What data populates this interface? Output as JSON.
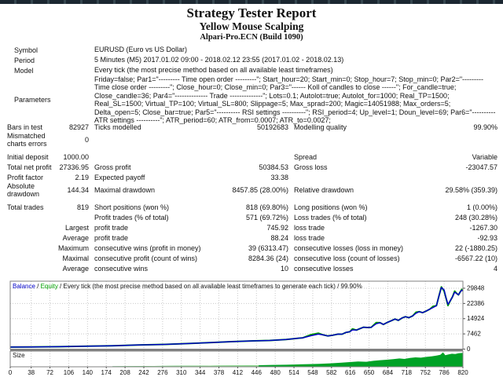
{
  "header": {
    "title": "Strategy Tester Report",
    "subtitle": "Yellow Mouse Scalping",
    "server": "Alpari-Pro.ECN (Build 1090)"
  },
  "info": {
    "symbol_label": "Symbol",
    "symbol": "EURUSD (Euro vs US Dollar)",
    "period_label": "Period",
    "period": "5 Minutes (M5) 2017.01.02 09:00 - 2018.02.12 23:55 (2017.01.02 - 2018.02.13)",
    "model_label": "Model",
    "model": "Every tick (the most precise method based on all available least timeframes)",
    "parameters_label": "Parameters",
    "parameters": "Friday=false; Par1=\"--------- Time open order ---------\"; Start_hour=20; Start_min=0; Stop_hour=7; Stop_min=0; Par2=\"--------- Time close order ---------\"; Close_hour=0; Close_min=0; Par3=\"------ Koll of candles to close ------\"; For_candle=true; Close_candle=36; Par4=\"-------------- Trade --------------\"; Lots=0.1; Autolot=true; Autolot_for=1000; Real_TP=1500; Real_SL=1500; Virtual_TP=100; Virtual_SL=800; Slippage=5; Max_sprad=200; Magic=14051988; Max_orders=5; Delta_open=5; Close_bar=true; Par5=\"---------- RSI settings ----------\"; RSI_period=4; Up_level=1; Doun_level=69; Par6=\"---------- ATR settings ----------\"; ATR_period=60; ATR_from=0.0007; ATR_to=0.0027;"
  },
  "stats_rows": [
    {
      "gap": false,
      "cells": [
        "Bars in test",
        "82927",
        "Ticks modelled",
        "50192683",
        "Modelling quality",
        "99.90%"
      ]
    },
    {
      "gap": false,
      "cells": [
        "Mismatched charts errors",
        "0",
        "",
        "",
        "",
        ""
      ]
    },
    {
      "gap": true,
      "cells": [
        "Initial deposit",
        "1000.00",
        "",
        "",
        "Spread",
        "Variable"
      ]
    },
    {
      "gap": false,
      "cells": [
        "Total net profit",
        "27336.95",
        "Gross profit",
        "50384.53",
        "Gross loss",
        "-23047.57"
      ]
    },
    {
      "gap": false,
      "cells": [
        "Profit factor",
        "2.19",
        "Expected payoff",
        "33.38",
        "",
        ""
      ]
    },
    {
      "gap": false,
      "cells": [
        "Absolute drawdown",
        "144.34",
        "Maximal drawdown",
        "8457.85 (28.00%)",
        "Relative drawdown",
        "29.58% (359.39)"
      ]
    },
    {
      "gap": true,
      "cells": [
        "Total trades",
        "819",
        "Short positions (won %)",
        "818 (69.80%)",
        "Long positions (won %)",
        "1 (0.00%)"
      ]
    },
    {
      "gap": false,
      "cells": [
        "",
        "",
        "Profit trades (% of total)",
        "571 (69.72%)",
        "Loss trades (% of total)",
        "248 (30.28%)"
      ]
    },
    {
      "gap": false,
      "cells": [
        "",
        "Largest",
        "profit trade",
        "745.92",
        "loss trade",
        "-1267.30"
      ]
    },
    {
      "gap": false,
      "cells": [
        "",
        "Average",
        "profit trade",
        "88.24",
        "loss trade",
        "-92.93"
      ]
    },
    {
      "gap": false,
      "cells": [
        "",
        "Maximum",
        "consecutive wins (profit in money)",
        "39 (6313.47)",
        "consecutive losses (loss in money)",
        "22 (-1880.25)"
      ]
    },
    {
      "gap": false,
      "cells": [
        "",
        "Maximal",
        "consecutive profit (count of wins)",
        "8284.36 (24)",
        "consecutive loss (count of losses)",
        "-6567.22 (10)"
      ]
    },
    {
      "gap": false,
      "cells": [
        "",
        "Average",
        "consecutive wins",
        "10",
        "consecutive losses",
        "4"
      ]
    }
  ],
  "chart_data": {
    "type": "line",
    "legend": {
      "balance": "Balance",
      "sep1": " / ",
      "equity": "Equity",
      "sep2": " / ",
      "suffix": "Every tick (the most precise method based on all available least timeframes to generate each tick) / 99.90%"
    },
    "size_label": "Size",
    "colors": {
      "balance": "#0000C8",
      "equity": "#00A000",
      "size_fill": "#00A226",
      "size_fill_light": "#90D890",
      "grid": "#c9c9c9",
      "border": "#808080"
    },
    "xlim": [
      0,
      820
    ],
    "ylim": [
      0,
      33300
    ],
    "x_ticks": [
      0,
      38,
      72,
      106,
      140,
      174,
      208,
      242,
      276,
      310,
      344,
      378,
      412,
      446,
      480,
      514,
      548,
      582,
      616,
      650,
      684,
      718,
      752,
      786,
      820
    ],
    "y_ticks": [
      0,
      7462,
      14924,
      22386,
      29848
    ],
    "series": [
      {
        "name": "Balance",
        "points": [
          [
            0,
            1000
          ],
          [
            40,
            1060
          ],
          [
            90,
            1200
          ],
          [
            140,
            1430
          ],
          [
            185,
            1620
          ],
          [
            230,
            2000
          ],
          [
            280,
            2320
          ],
          [
            327,
            2800
          ],
          [
            365,
            3250
          ],
          [
            400,
            3650
          ],
          [
            440,
            4050
          ],
          [
            470,
            4250
          ],
          [
            500,
            4750
          ],
          [
            530,
            5550
          ],
          [
            545,
            6600
          ],
          [
            558,
            7350
          ],
          [
            567,
            6950
          ],
          [
            575,
            6450
          ],
          [
            585,
            6850
          ],
          [
            594,
            7350
          ],
          [
            601,
            7300
          ],
          [
            608,
            8150
          ],
          [
            615,
            8500
          ],
          [
            620,
            9450
          ],
          [
            627,
            9300
          ],
          [
            634,
            10100
          ],
          [
            640,
            10750
          ],
          [
            647,
            10600
          ],
          [
            654,
            10700
          ],
          [
            663,
            12450
          ],
          [
            670,
            12950
          ],
          [
            676,
            12100
          ],
          [
            683,
            13100
          ],
          [
            690,
            13900
          ],
          [
            697,
            14750
          ],
          [
            703,
            14100
          ],
          [
            710,
            15300
          ],
          [
            716,
            15900
          ],
          [
            722,
            15400
          ],
          [
            729,
            16300
          ],
          [
            735,
            17600
          ],
          [
            741,
            18350
          ],
          [
            747,
            17850
          ],
          [
            753,
            18600
          ],
          [
            760,
            19600
          ],
          [
            766,
            20400
          ],
          [
            772,
            21300
          ],
          [
            777,
            26500
          ],
          [
            781,
            30200
          ],
          [
            786,
            29000
          ],
          [
            789,
            25500
          ],
          [
            793,
            21950
          ],
          [
            797,
            23600
          ],
          [
            801,
            25600
          ],
          [
            805,
            27900
          ],
          [
            809,
            27200
          ],
          [
            812,
            26600
          ],
          [
            815,
            28000
          ],
          [
            818,
            28900
          ],
          [
            820,
            28500
          ]
        ]
      },
      {
        "name": "Equity",
        "equity_overrides": [
          [
            545,
            7100
          ],
          [
            558,
            7800
          ],
          [
            620,
            9950
          ],
          [
            663,
            13000
          ],
          [
            735,
            18100
          ],
          [
            766,
            21000
          ],
          [
            781,
            30500
          ],
          [
            786,
            28400
          ],
          [
            793,
            21350
          ],
          [
            805,
            28400
          ],
          [
            818,
            29300
          ]
        ]
      }
    ],
    "size_series": {
      "light_until": 470,
      "points": [
        [
          185,
          0.03
        ],
        [
          220,
          0.04
        ],
        [
          260,
          0.05
        ],
        [
          300,
          0.06
        ],
        [
          340,
          0.07
        ],
        [
          380,
          0.08
        ],
        [
          420,
          0.09
        ],
        [
          450,
          0.1
        ],
        [
          475,
          0.12
        ],
        [
          500,
          0.13
        ],
        [
          520,
          0.15
        ],
        [
          540,
          0.17
        ],
        [
          560,
          0.19
        ],
        [
          580,
          0.22
        ],
        [
          600,
          0.26
        ],
        [
          615,
          0.3
        ],
        [
          630,
          0.34
        ],
        [
          645,
          0.32
        ],
        [
          658,
          0.38
        ],
        [
          670,
          0.42
        ],
        [
          682,
          0.45
        ],
        [
          694,
          0.49
        ],
        [
          705,
          0.53
        ],
        [
          714,
          0.5
        ],
        [
          724,
          0.56
        ],
        [
          734,
          0.6
        ],
        [
          744,
          0.58
        ],
        [
          754,
          0.63
        ],
        [
          764,
          0.67
        ],
        [
          772,
          0.71
        ],
        [
          779,
          0.76
        ],
        [
          784,
          0.92
        ],
        [
          788,
          0.74
        ],
        [
          794,
          0.79
        ],
        [
          800,
          0.83
        ],
        [
          806,
          0.81
        ],
        [
          812,
          0.86
        ],
        [
          820,
          0.89
        ]
      ]
    }
  }
}
